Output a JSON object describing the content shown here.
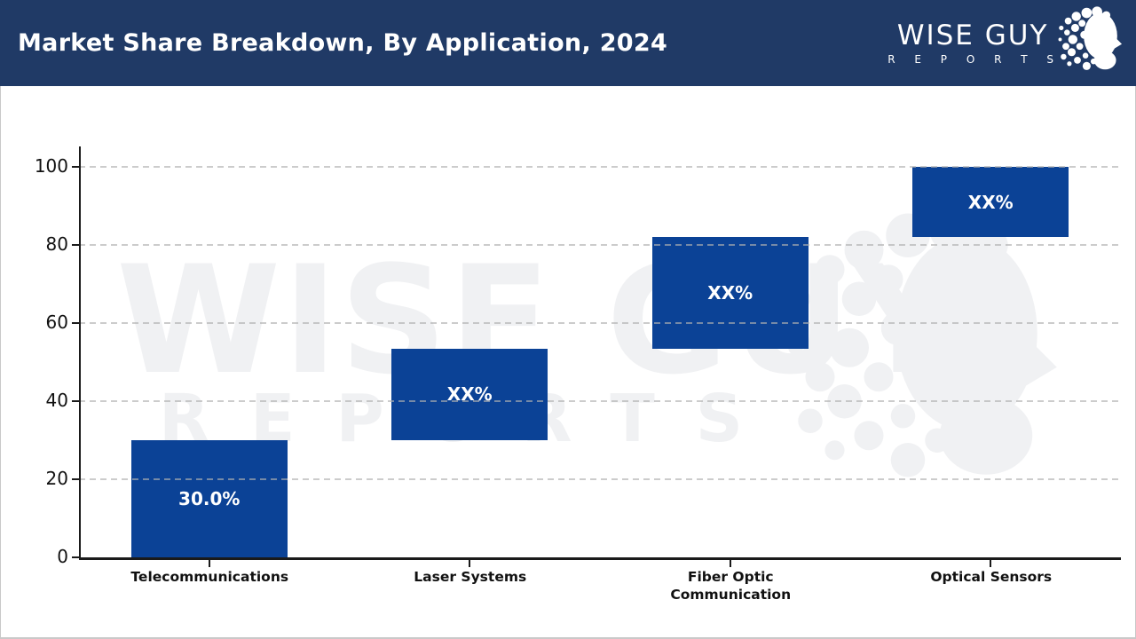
{
  "header": {
    "title": "Market Share Breakdown, By Application, 2024",
    "logo": {
      "line1": "WISE GUY",
      "line2": "R E P O R T S",
      "face_icon": "dotted-head-profile"
    }
  },
  "watermark": {
    "line1": "WISE GUY",
    "line2": "REPORTS",
    "face_icon": "dotted-head-profile"
  },
  "colors": {
    "header_bg": "#203a66",
    "bar_fill": "#0b4296",
    "bar_label": "#ffffff",
    "grid": "#bdbdbd",
    "axis": "#1a1a1a",
    "watermark": "#f0f1f3",
    "title_text": "#ffffff",
    "tick_text": "#111111"
  },
  "chart_data": {
    "type": "bar",
    "subtype": "floating-waterfall",
    "title": "Market Share Breakdown, By Application, 2024",
    "xlabel": "",
    "ylabel": "",
    "categories": [
      "Telecommunications",
      "Laser Systems",
      "Fiber Optic Communication",
      "Optical Sensors"
    ],
    "series": [
      {
        "name": "Market share (%)",
        "segments": [
          [
            0,
            30
          ],
          [
            30,
            53.5
          ],
          [
            53.5,
            82
          ],
          [
            82,
            100
          ]
        ]
      }
    ],
    "bar_labels": [
      "30.0%",
      "XX%",
      "XX%",
      "XX%"
    ],
    "yticks": [
      0,
      20,
      40,
      60,
      80,
      100
    ],
    "ylim": [
      0,
      105
    ],
    "grid": "horizontal-dashed",
    "legend": "none"
  }
}
